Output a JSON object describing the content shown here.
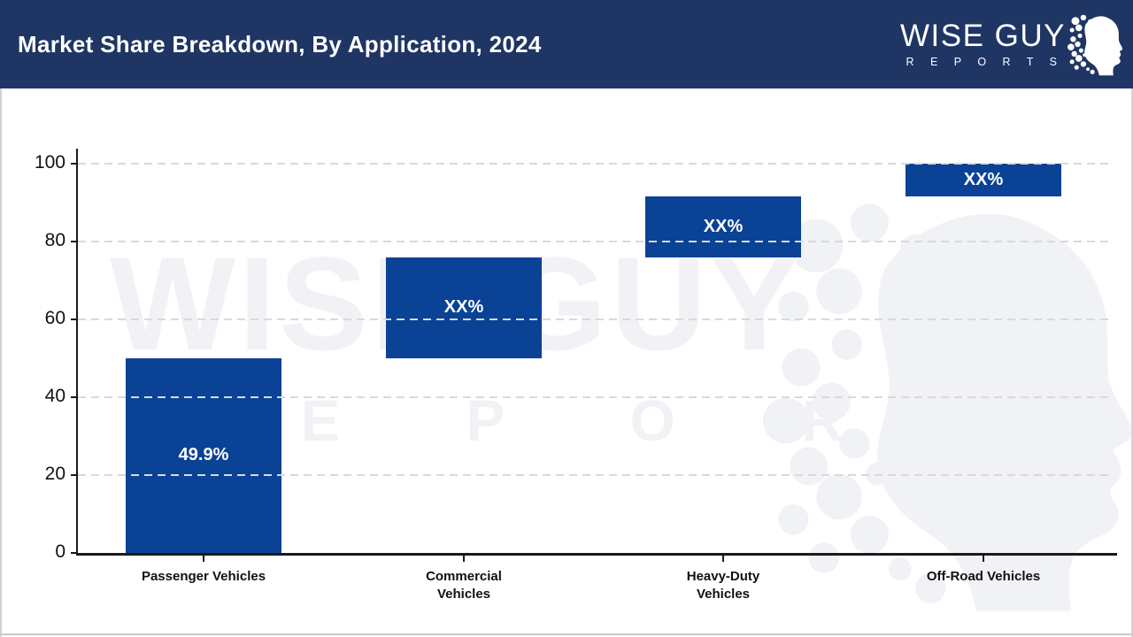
{
  "header": {
    "title": "Market Share Breakdown, By Application, 2024",
    "logo": {
      "word1": "WISE GUY",
      "word2": "R E P O R T S"
    }
  },
  "watermark": {
    "word1": "WISE GUY",
    "word2": "R E P O R T S"
  },
  "colors": {
    "header_bg": "#1f3564",
    "bar_fill": "#0a4296",
    "bar_label_text": "#ffffff",
    "gridline": "#d9d9d9",
    "axis": "#1a1a1a",
    "tick_text": "#111111",
    "watermark": "#f1f2f5"
  },
  "chart_data": {
    "type": "bar",
    "subtype": "waterfall",
    "title": "Market Share Breakdown, By Application, 2024",
    "unit": "%",
    "ylim": [
      0,
      105
    ],
    "yticks": [
      0,
      20,
      40,
      60,
      80,
      100
    ],
    "grid": "horizontal-dashed",
    "legend": "none",
    "categories": [
      "Passenger Vehicles",
      "Commercial Vehicles",
      "Heavy-Duty Vehicles",
      "Off-Road Vehicles"
    ],
    "bars": [
      {
        "category": "Passenger Vehicles",
        "label": "49.9%",
        "label_lines": [
          "Passenger Vehicles"
        ],
        "start": 0,
        "end": 49.9
      },
      {
        "category": "Commercial Vehicles",
        "label": "XX%",
        "label_lines": [
          "Commercial",
          "Vehicles"
        ],
        "start": 49.9,
        "end": 75.9
      },
      {
        "category": "Heavy-Duty Vehicles",
        "label": "XX%",
        "label_lines": [
          "Heavy-Duty",
          "Vehicles"
        ],
        "start": 75.9,
        "end": 91.5
      },
      {
        "category": "Off-Road Vehicles",
        "label": "XX%",
        "label_lines": [
          "Off-Road Vehicles"
        ],
        "start": 91.5,
        "end": 100
      }
    ]
  }
}
